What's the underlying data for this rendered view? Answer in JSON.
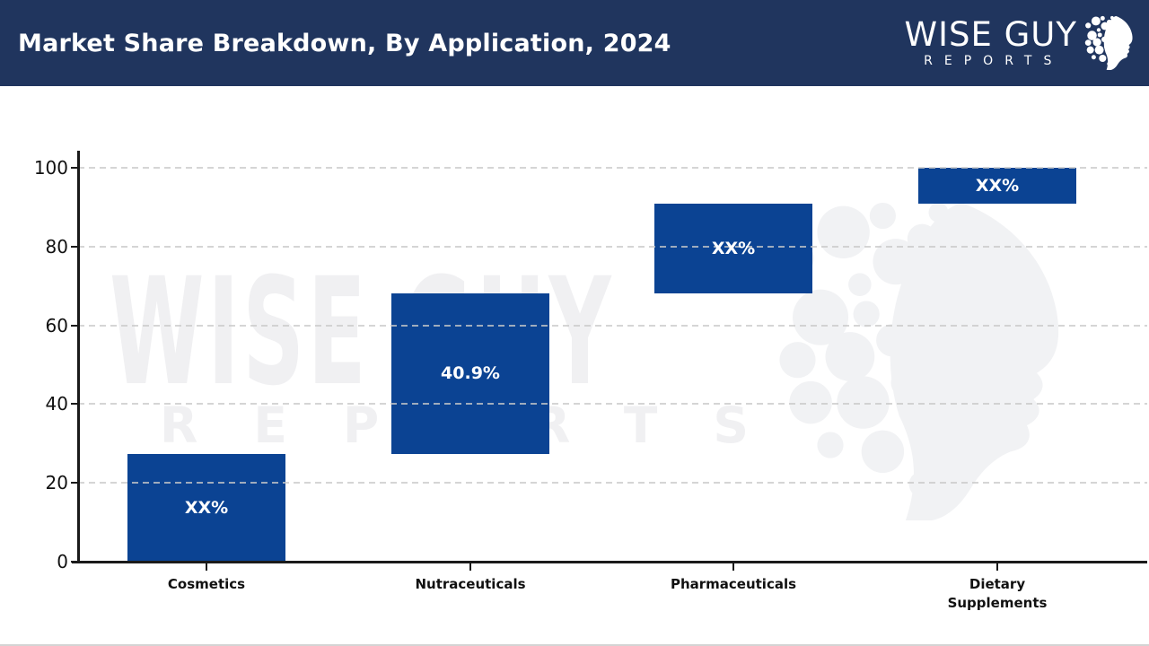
{
  "header": {
    "title": "Market Share Breakdown, By Application, 2024",
    "brand_line1": "WISE GUY",
    "brand_line2": "REPORTS"
  },
  "watermark": {
    "line1": "WISE GUY",
    "line2": "REPORTS"
  },
  "colors": {
    "header_bg": "#20355E",
    "bar": "#0B4393",
    "gridline": "#C9C9C9",
    "axis": "#1A1A1A",
    "watermark": "#F0F0F2",
    "title_text": "#FFFFFF",
    "bar_label_text": "#FFFFFF"
  },
  "chart_data": {
    "type": "bar",
    "subtype": "waterfall",
    "title": "Market Share Breakdown, By Application, 2024",
    "xlabel": "",
    "ylabel": "",
    "ylim": [
      0,
      100
    ],
    "y_ticks": [
      0,
      20,
      40,
      60,
      80,
      100
    ],
    "grid": true,
    "legend": false,
    "bar_color": "#0B4393",
    "categories": [
      "Cosmetics",
      "Nutraceuticals",
      "Pharmaceuticals",
      "Dietary Supplements"
    ],
    "segments": [
      {
        "category": "Cosmetics",
        "start": 0,
        "end": 27.3,
        "value": 27.3,
        "label": "XX%"
      },
      {
        "category": "Nutraceuticals",
        "start": 27.3,
        "end": 68.2,
        "value": 40.9,
        "label": "40.9%"
      },
      {
        "category": "Pharmaceuticals",
        "start": 68.2,
        "end": 90.9,
        "value": 22.7,
        "label": "XX%"
      },
      {
        "category": "Dietary Supplements",
        "start": 90.9,
        "end": 100,
        "value": 9.1,
        "label": "XX%"
      }
    ]
  }
}
